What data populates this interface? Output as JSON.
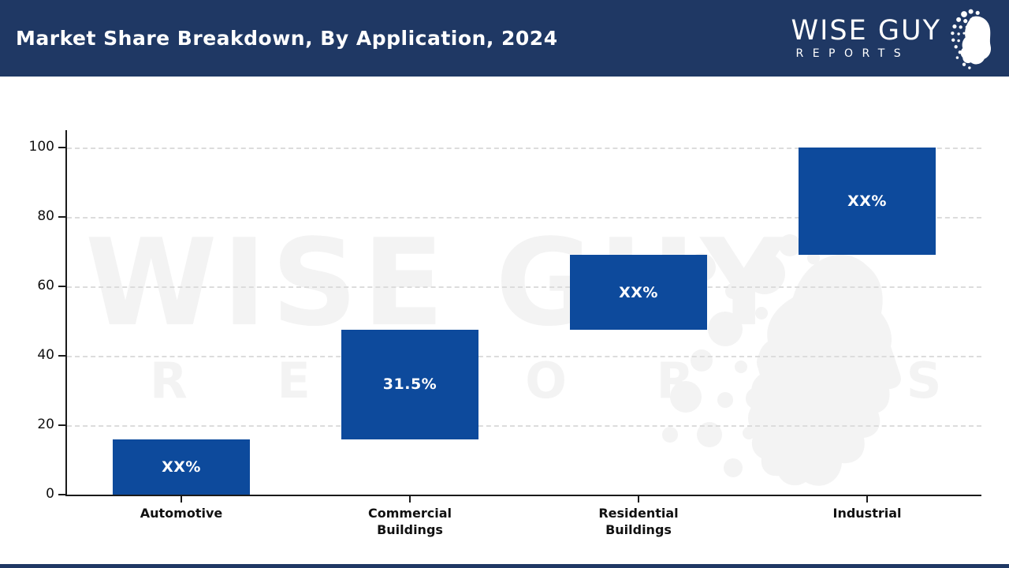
{
  "header": {
    "title": "Market Share Breakdown, By Application, 2024",
    "logo": {
      "line1": "WISE GUY",
      "line2": "REPORTS"
    }
  },
  "watermark": {
    "line1": "WISE GUY",
    "line2": "R E P O R T S"
  },
  "chart_data": {
    "type": "bar",
    "subtype": "waterfall",
    "title": "Market Share Breakdown, By Application, 2024",
    "categories": [
      "Automotive",
      "Commercial\nBuildings",
      "Residential\nBuildings",
      "Industrial"
    ],
    "bars": [
      {
        "category": "Automotive",
        "start": 0,
        "end": 16,
        "label": "XX%"
      },
      {
        "category": "Commercial Buildings",
        "start": 16,
        "end": 47.5,
        "label": "31.5%"
      },
      {
        "category": "Residential Buildings",
        "start": 47.5,
        "end": 69,
        "label": "XX%"
      },
      {
        "category": "Industrial",
        "start": 69,
        "end": 100,
        "label": "XX%"
      }
    ],
    "ylim": [
      0,
      100
    ],
    "yticks": [
      0,
      20,
      40,
      60,
      80,
      100
    ],
    "grid": "horizontal-dashed",
    "legend": "none",
    "bar_color": "#0d4a9c",
    "bar_label_color": "#ffffff",
    "header_color": "#1f3864",
    "watermark_color": "#f3f3f3"
  }
}
